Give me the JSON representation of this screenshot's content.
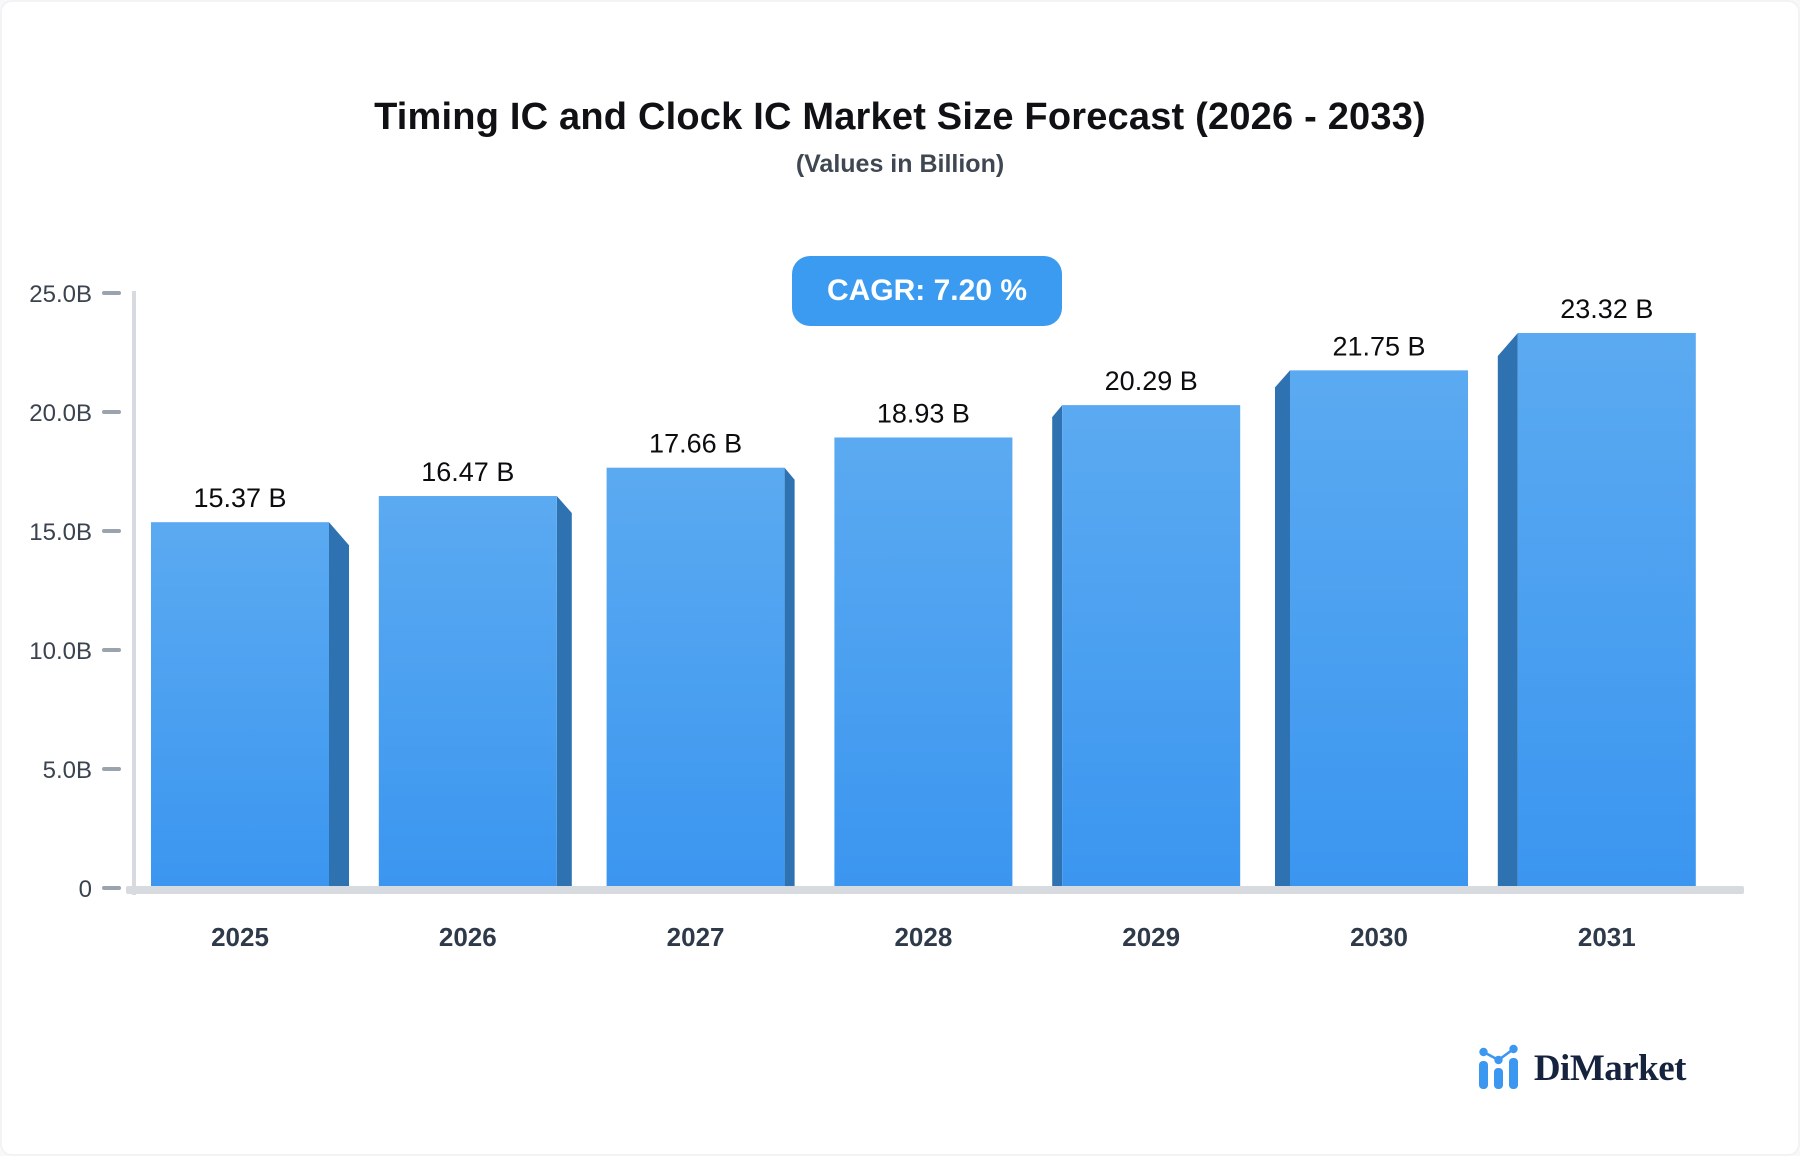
{
  "badge": {
    "label": "CAGR: 7.20 %"
  },
  "logo": {
    "text": "DiMarket",
    "icon": "mini-bar-chart-with-trend-dots-icon"
  },
  "chart_data": {
    "type": "bar",
    "title": "Timing IC and Clock IC Market Size Forecast (2026 - 2033)",
    "subtitle": "(Values in Billion)",
    "categories": [
      "2025",
      "2026",
      "2027",
      "2028",
      "2029",
      "2030",
      "2031"
    ],
    "values": [
      15.37,
      16.47,
      17.66,
      18.93,
      20.29,
      21.75,
      23.32
    ],
    "bar_labels": [
      "15.37 B",
      "16.47 B",
      "17.66 B",
      "18.93 B",
      "20.29 B",
      "21.75 B",
      "23.32 B"
    ],
    "y_ticks": [
      {
        "label": "0",
        "value": 0
      },
      {
        "label": "5.0B",
        "value": 5
      },
      {
        "label": "10.0B",
        "value": 10
      },
      {
        "label": "15.0B",
        "value": 15
      },
      {
        "label": "20.0B",
        "value": 20
      },
      {
        "label": "25.0B",
        "value": 25
      }
    ],
    "ylim": [
      0,
      25
    ],
    "xlabel": "",
    "ylabel": "",
    "grid": "off",
    "legend": "none",
    "bar_style": "3d-beveled"
  },
  "colors": {
    "bar_face_top": "#5BAAF1",
    "bar_face_bottom": "#3B96F0",
    "bar_side": "#2E72B1",
    "badge_bg": "#3B9BF1",
    "badge_text": "#FFFFFF",
    "axis_line": "#D7DBE0",
    "tick_dash": "#9AA3AE",
    "y_label_color": "#3A434F",
    "x_label_color": "#2E3A49",
    "value_label_color": "#0B0C0E",
    "title_color": "#101114",
    "subtitle_color": "#3F4852",
    "logo_text_color": "#16233E",
    "logo_icon_color": "#3B97EF"
  }
}
